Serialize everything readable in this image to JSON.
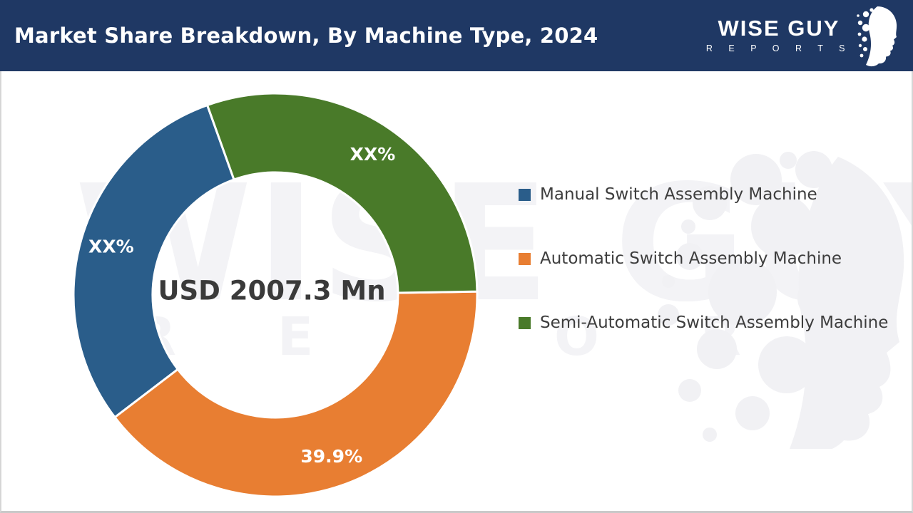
{
  "header": {
    "title": "Market Share Breakdown, By Machine Type, 2024",
    "logo": {
      "brand_line1": "WISE GUY",
      "brand_line2": "R E P O R T S"
    }
  },
  "watermark": {
    "line1": "WISE GUY",
    "line2": "R E P O R T S"
  },
  "chart_data": {
    "type": "pie",
    "subtype": "donut",
    "center_label": "USD 2007.3 Mn",
    "start_angle_deg": 109.7,
    "direction": "counterclockwise",
    "legend_position": "right",
    "segments": [
      {
        "id": "manual",
        "label": "Manual Switch Assembly Machine",
        "display_value": "XX%",
        "percent_sweep": 29.9,
        "color": "#2a5d8a"
      },
      {
        "id": "automatic",
        "label": "Automatic Switch Assembly Machine",
        "display_value": "39.9%",
        "percent_sweep": 39.9,
        "color": "#e87e32"
      },
      {
        "id": "semi-automatic",
        "label": "Semi-Automatic Switch Assembly Machine",
        "display_value": "XX%",
        "percent_sweep": 30.2,
        "color": "#497a29"
      }
    ]
  },
  "colors": {
    "header_bg": "#1f3864",
    "title_text": "#ffffff",
    "center_text": "#3a3a3a",
    "legend_text": "#3d3d3d",
    "slice_label_text": "#ffffff",
    "watermark": "#f3f3f6",
    "border_line": "#c9c9c9"
  }
}
